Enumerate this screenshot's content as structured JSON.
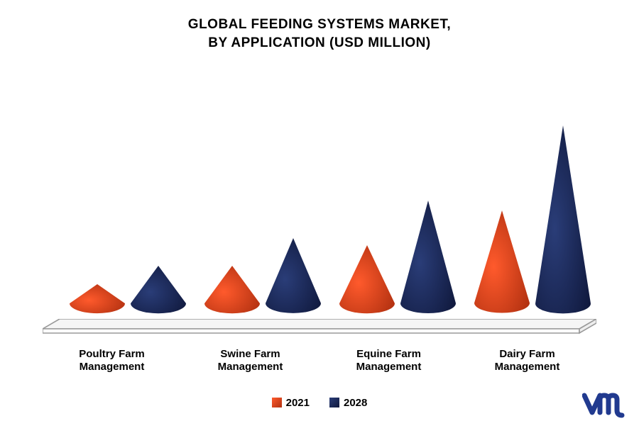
{
  "chart": {
    "type": "cone-bar",
    "title_line1": "GLOBAL FEEDING SYSTEMS MARKET,",
    "title_line2": "BY APPLICATION (USD MILLION)",
    "title_fontsize": 19,
    "title_color": "#000000",
    "background_color": "#ffffff",
    "categories": [
      "Poultry Farm\nManagement",
      "Swine Farm\nManagement",
      "Equine Farm\nManagement",
      "Dairy Farm\nManagement"
    ],
    "category_fontsize": 15,
    "category_fontweight": 700,
    "series": [
      {
        "name": "2021",
        "color_light": "#ff5a2c",
        "color_dark": "#b03010",
        "values": [
          28,
          55,
          85,
          135
        ]
      },
      {
        "name": "2028",
        "color_light": "#2a3d78",
        "color_dark": "#10193d",
        "values": [
          55,
          95,
          150,
          260
        ]
      }
    ],
    "ylim": [
      0,
      300
    ],
    "cone_base_width": 78,
    "cone_ellipse_ry_ratio": 0.18,
    "pair_gap": 8,
    "group_centers": [
      120,
      310,
      500,
      690
    ],
    "platform": {
      "top_y": 0,
      "depth": 14,
      "skew": 24,
      "fill": "#f5f5f5",
      "edge": "#9a9a9a",
      "edge_width": 1.6
    },
    "legend_fontsize": 15,
    "logo": {
      "stroke": "#213a8f",
      "stroke_width": 7
    }
  }
}
